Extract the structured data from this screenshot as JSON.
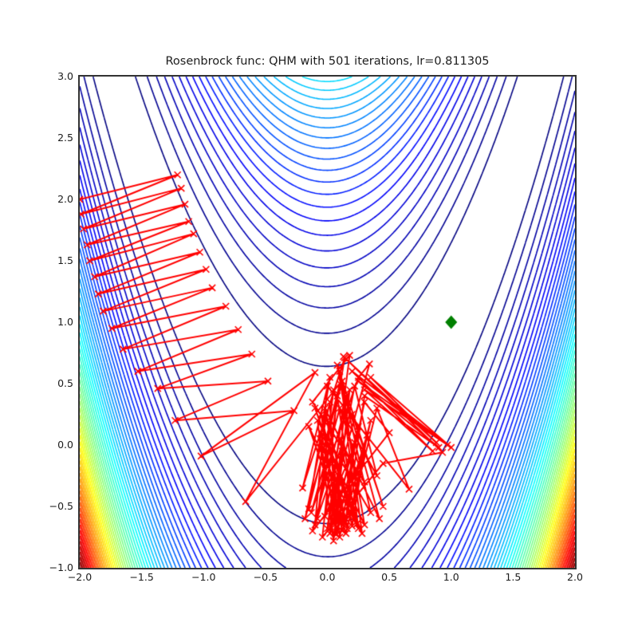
{
  "chart": {
    "optimizer": "QHM",
    "iterations": 501,
    "learning_rate": 0.811305,
    "colors": {
      "path": "#ff0000",
      "minimum_marker": "#008000",
      "spine": "#333333",
      "text": "#1c1c1c",
      "background": "#ffffff"
    }
  },
  "chart_data": {
    "type": "line",
    "title": "Rosenbrock func: QHM with 501 iterations, lr=0.811305",
    "xlabel": "",
    "ylabel": "",
    "xlim": [
      -2,
      2
    ],
    "ylim": [
      -1,
      3
    ],
    "grid": false,
    "legend": "none",
    "xticks": [
      {
        "label": "−2.0",
        "value": -2.0
      },
      {
        "label": "−1.5",
        "value": -1.5
      },
      {
        "label": "−1.0",
        "value": -1.0
      },
      {
        "label": "−0.5",
        "value": -0.5
      },
      {
        "label": "0.0",
        "value": 0.0
      },
      {
        "label": "0.5",
        "value": 0.5
      },
      {
        "label": "1.0",
        "value": 1.0
      },
      {
        "label": "1.5",
        "value": 1.5
      },
      {
        "label": "2.0",
        "value": 2.0
      }
    ],
    "yticks": [
      {
        "label": "3.0",
        "value": 3.0
      },
      {
        "label": "2.5",
        "value": 2.5
      },
      {
        "label": "2.0",
        "value": 2.0
      },
      {
        "label": "1.5",
        "value": 1.5
      },
      {
        "label": "1.0",
        "value": 1.0
      },
      {
        "label": "0.5",
        "value": 0.5
      },
      {
        "label": "0.0",
        "value": 0.0
      },
      {
        "label": "−0.5",
        "value": -0.5
      },
      {
        "label": "−1.0",
        "value": -1.0
      }
    ],
    "contour": {
      "function": "rosenbrock",
      "formula": "(1-x)^2 + 100*(y-x^2)^2",
      "levels": 60,
      "level_min": 42,
      "level_max": 2505,
      "colormap": "jet",
      "linewidth": 1.6
    },
    "series": [
      {
        "name": "qhm-optimization-path",
        "color": "#ff0000",
        "marker": "x",
        "linewidth": 2,
        "points": [
          [
            -2.0,
            2.0
          ],
          [
            -1.21,
            2.2
          ],
          [
            -1.99,
            1.88
          ],
          [
            -1.18,
            2.09
          ],
          [
            -1.97,
            1.76
          ],
          [
            -1.15,
            1.96
          ],
          [
            -1.94,
            1.63
          ],
          [
            -1.12,
            1.82
          ],
          [
            -1.92,
            1.5
          ],
          [
            -1.08,
            1.72
          ],
          [
            -1.88,
            1.37
          ],
          [
            -1.03,
            1.57
          ],
          [
            -1.85,
            1.23
          ],
          [
            -0.98,
            1.43
          ],
          [
            -1.81,
            1.09
          ],
          [
            -0.93,
            1.28
          ],
          [
            -1.74,
            0.95
          ],
          [
            -0.82,
            1.13
          ],
          [
            -1.65,
            0.78
          ],
          [
            -0.72,
            0.94
          ],
          [
            -1.53,
            0.6
          ],
          [
            -0.61,
            0.74
          ],
          [
            -1.37,
            0.46
          ],
          [
            -0.48,
            0.52
          ],
          [
            -1.23,
            0.2
          ],
          [
            -0.27,
            0.28
          ],
          [
            -1.02,
            -0.09
          ],
          [
            -0.1,
            0.59
          ],
          [
            -0.66,
            -0.46
          ],
          [
            0.1,
            0.5
          ],
          [
            -0.15,
            -0.52
          ],
          [
            0.02,
            0.55
          ],
          [
            -0.2,
            -0.35
          ],
          [
            0.14,
            0.71
          ],
          [
            -0.08,
            -0.6
          ],
          [
            0.05,
            0.45
          ],
          [
            0.3,
            -0.3
          ],
          [
            -0.12,
            0.35
          ],
          [
            0.18,
            0.73
          ],
          [
            0.0,
            -0.68
          ],
          [
            0.22,
            0.48
          ],
          [
            0.4,
            -0.25
          ],
          [
            0.1,
            0.3
          ],
          [
            -0.13,
            -0.55
          ],
          [
            0.25,
            0.55
          ],
          [
            0.34,
            0.66
          ],
          [
            0.05,
            -0.4
          ],
          [
            -0.05,
            0.25
          ],
          [
            0.15,
            -0.65
          ],
          [
            0.3,
            0.4
          ],
          [
            0.9,
            -0.02
          ],
          [
            0.25,
            0.52
          ],
          [
            0.97,
            0.0
          ],
          [
            0.3,
            0.45
          ],
          [
            0.85,
            -0.05
          ],
          [
            0.2,
            0.6
          ],
          [
            1.0,
            -0.02
          ],
          [
            0.35,
            0.55
          ],
          [
            0.88,
            0.02
          ],
          [
            0.13,
            0.72
          ],
          [
            0.93,
            -0.06
          ],
          [
            0.45,
            -0.15
          ],
          [
            -0.04,
            -0.75
          ],
          [
            0.08,
            0.4
          ],
          [
            0.22,
            -0.6
          ],
          [
            -0.1,
            0.3
          ],
          [
            0.28,
            -0.72
          ],
          [
            0.12,
            0.52
          ],
          [
            -0.18,
            -0.6
          ],
          [
            0.02,
            0.35
          ],
          [
            0.07,
            -0.73
          ],
          [
            0.3,
            0.35
          ],
          [
            0.5,
            0.1
          ],
          [
            -0.12,
            -0.7
          ],
          [
            0.18,
            0.45
          ],
          [
            0.05,
            -0.78
          ],
          [
            -0.08,
            0.2
          ],
          [
            0.35,
            -0.55
          ],
          [
            0.1,
            0.6
          ],
          [
            0.25,
            -0.68
          ],
          [
            -0.15,
            0.15
          ],
          [
            0.15,
            -0.72
          ],
          [
            0.4,
            0.3
          ],
          [
            0.66,
            -0.36
          ],
          [
            0.0,
            0.48
          ],
          [
            -0.1,
            -0.65
          ],
          [
            0.2,
            0.25
          ],
          [
            0.45,
            -0.5
          ],
          [
            0.08,
            0.65
          ],
          [
            0.3,
            -0.65
          ],
          [
            -0.05,
            0.1
          ],
          [
            0.12,
            -0.7
          ],
          [
            0.35,
            0.2
          ],
          [
            0.18,
            -0.58
          ],
          [
            -0.02,
            0.3
          ],
          [
            0.42,
            -0.6
          ],
          [
            0.15,
            0.4
          ],
          [
            0.05,
            -0.62
          ],
          [
            0.25,
            0.15
          ],
          [
            0.1,
            -0.75
          ],
          [
            0.0,
            0.2
          ],
          [
            0.2,
            -0.66
          ],
          [
            0.32,
            0.08
          ],
          [
            0.08,
            -0.7
          ],
          [
            -0.06,
            0.05
          ],
          [
            0.15,
            -0.6
          ],
          [
            0.22,
            0.02
          ],
          [
            0.02,
            -0.72
          ],
          [
            0.12,
            -0.05
          ],
          [
            0.06,
            -0.65
          ],
          [
            0.18,
            -0.1
          ],
          [
            -0.02,
            -0.58
          ],
          [
            0.1,
            0.05
          ],
          [
            0.24,
            -0.64
          ],
          [
            0.04,
            -0.15
          ],
          [
            0.16,
            -0.68
          ],
          [
            0.08,
            -0.3
          ],
          [
            0.02,
            -0.66
          ],
          [
            0.12,
            -0.45
          ],
          [
            0.06,
            -0.7
          ],
          [
            0.09,
            -0.55
          ],
          [
            0.14,
            -0.62
          ],
          [
            0.11,
            -0.58
          ]
        ]
      },
      {
        "name": "global-minimum",
        "color": "#008000",
        "marker": "D",
        "linewidth": 0,
        "points": [
          [
            1.0,
            1.0
          ]
        ]
      }
    ]
  }
}
